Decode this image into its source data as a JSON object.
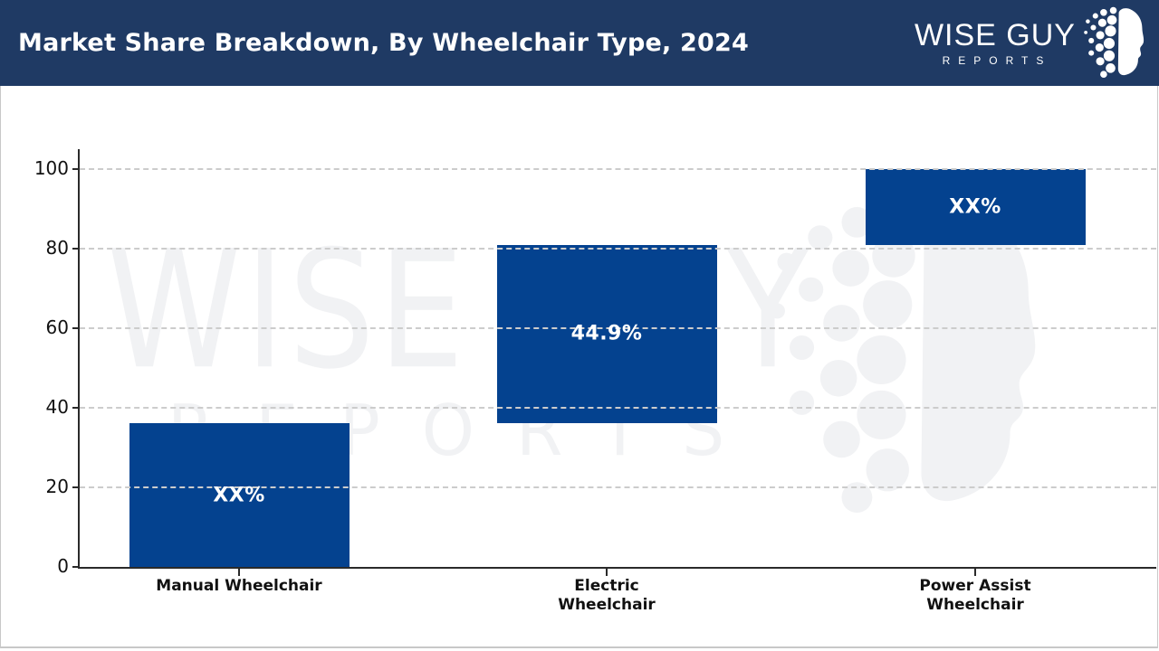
{
  "header": {
    "title": "Market Share Breakdown, By Wheelchair Type, 2024",
    "logo": {
      "name": "WISE GUY",
      "tagline": "REPORTS"
    }
  },
  "watermark": {
    "word": "WISE GUY",
    "tagline": "REPORTS"
  },
  "colors": {
    "header_bg": "#1f3a64",
    "bar": "#04428f",
    "grid": "#cccccc",
    "axis": "#2a2a2a",
    "text": "#111111",
    "on_bar": "#ffffff",
    "watermark": "#f1f2f4",
    "border": "#c8c8c8"
  },
  "chart_data": {
    "type": "bar",
    "subtype": "floating-waterfall",
    "title": "Market Share Breakdown, By Wheelchair Type, 2024",
    "categories": [
      "Manual Wheelchair",
      "Electric\nWheelchair",
      "Power Assist\nWheelchair"
    ],
    "series": [
      {
        "name": "Market share (%)",
        "segments": [
          {
            "from": 0,
            "to": 36.1,
            "displayed_label": "XX%",
            "implied_value": 36.1
          },
          {
            "from": 36.1,
            "to": 81.0,
            "displayed_label": "44.9%",
            "implied_value": 44.9
          },
          {
            "from": 81.0,
            "to": 100,
            "displayed_label": "XX%",
            "implied_value": 19.0
          }
        ]
      }
    ],
    "xlabel": "",
    "ylabel": "",
    "ylim": [
      0,
      100
    ],
    "yticks": [
      0,
      20,
      40,
      60,
      80,
      100
    ],
    "grid": "horizontal dashed, drawn above bars",
    "legend": "none"
  }
}
